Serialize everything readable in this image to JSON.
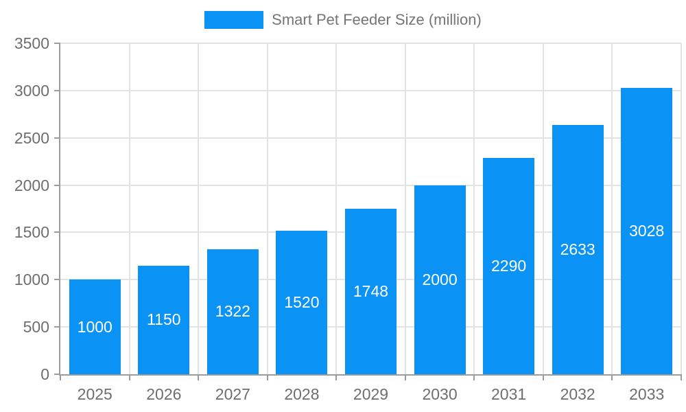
{
  "legend": {
    "label": "Smart Pet Feeder Size (million)"
  },
  "chart_data": {
    "type": "bar",
    "title": "",
    "series_name": "Smart Pet Feeder Size (million)",
    "categories": [
      "2025",
      "2026",
      "2027",
      "2028",
      "2029",
      "2030",
      "2031",
      "2032",
      "2033"
    ],
    "values": [
      1000,
      1150,
      1322,
      1520,
      1748,
      2000,
      2290,
      2633,
      3028
    ],
    "value_labels": [
      "1000",
      "1150",
      "1322",
      "1520",
      "1748",
      "2000",
      "2290",
      "2633",
      "3028"
    ],
    "xlabel": "",
    "ylabel": "",
    "ylim": [
      0,
      3500
    ],
    "yticks": [
      0,
      500,
      1000,
      1500,
      2000,
      2500,
      3000,
      3500
    ],
    "grid": true,
    "legend_position": "top-center",
    "bar_color": "#0b92f5",
    "value_label_color": "#ffffff",
    "axis_color": "#9c9c9c",
    "grid_color": "#e3e3e3",
    "tick_label_color": "#6e6e6e",
    "legend_text_color": "#757575"
  }
}
